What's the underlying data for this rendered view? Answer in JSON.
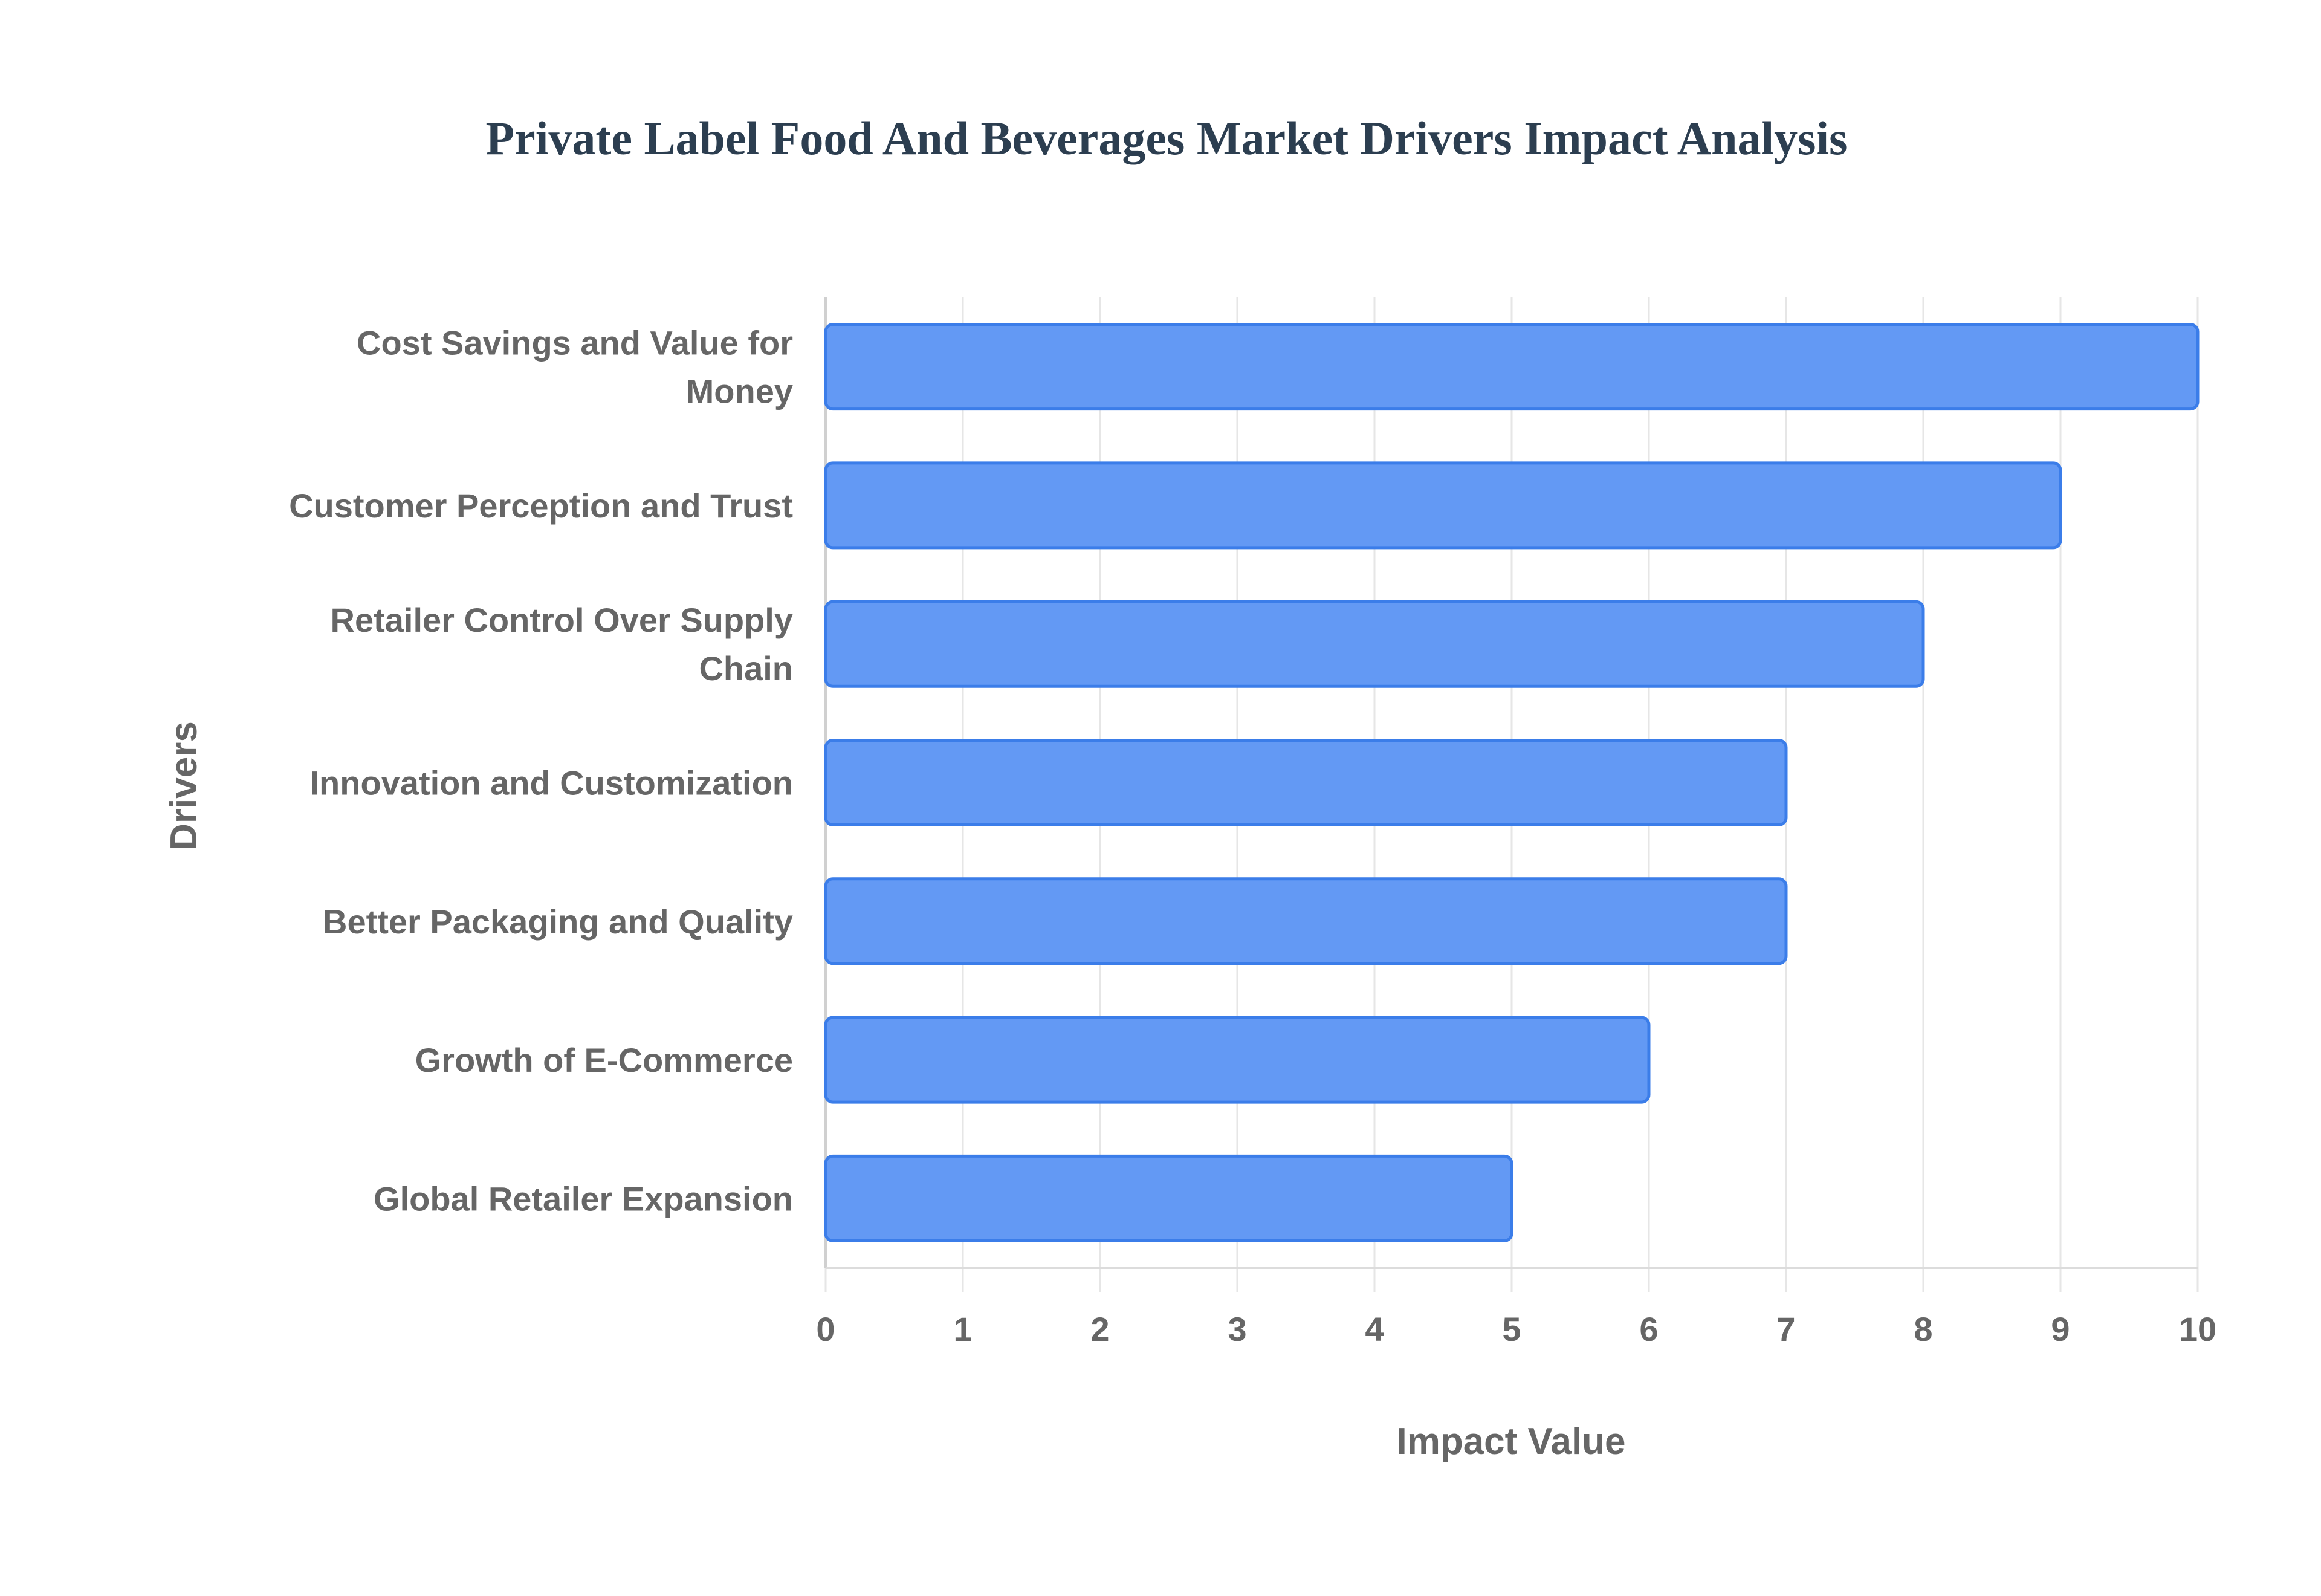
{
  "chart_data": {
    "type": "bar",
    "orientation": "horizontal",
    "title": "Private Label Food And Beverages Market Drivers Impact Analysis",
    "xlabel": "Impact Value",
    "ylabel": "Drivers",
    "categories": [
      "Cost Savings and Value for Money",
      "Customer Perception and Trust",
      "Retailer Control Over Supply Chain",
      "Innovation and Customization",
      "Better Packaging and Quality",
      "Growth of E-Commerce",
      "Global Retailer Expansion"
    ],
    "category_label_lines": [
      [
        "Cost Savings and Value for",
        "Money"
      ],
      [
        "Customer Perception and Trust"
      ],
      [
        "Retailer Control Over Supply",
        "Chain"
      ],
      [
        "Innovation and Customization"
      ],
      [
        "Better Packaging and Quality"
      ],
      [
        "Growth of E-Commerce"
      ],
      [
        "Global Retailer Expansion"
      ]
    ],
    "values": [
      10,
      9,
      8,
      7,
      7,
      6,
      5
    ],
    "xlim": [
      0,
      10
    ],
    "xticks": [
      0,
      1,
      2,
      3,
      4,
      5,
      6,
      7,
      8,
      9,
      10
    ],
    "grid": true,
    "legend": "none",
    "colors": {
      "bar_fill": "#6399f4",
      "bar_border": "#3b7de9",
      "grid": "#e6e6e6"
    }
  }
}
